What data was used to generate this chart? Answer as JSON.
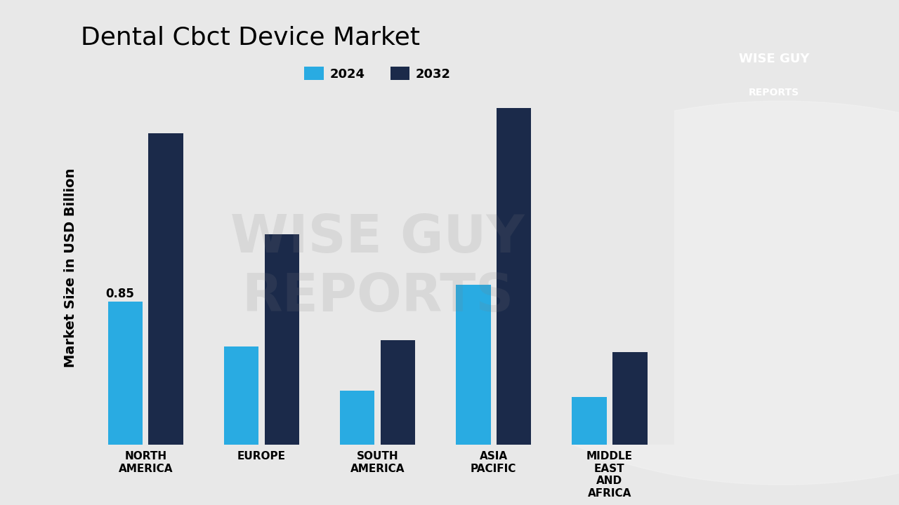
{
  "title": "Dental Cbct Device Market",
  "ylabel": "Market Size in USD Billion",
  "categories": [
    "NORTH\nAMERICA",
    "EUROPE",
    "SOUTH\nAMERICA",
    "ASIA\nPACIFIC",
    "MIDDLE\nEAST\nAND\nAFRICA"
  ],
  "series_2024": [
    0.85,
    0.58,
    0.32,
    0.95,
    0.28
  ],
  "series_2032": [
    1.85,
    1.25,
    0.62,
    2.0,
    0.55
  ],
  "color_2024": "#29ABE2",
  "color_2032": "#1B2A4A",
  "legend_labels": [
    "2024",
    "2032"
  ],
  "annotation_text": "0.85",
  "background_color": "#E8E8E8",
  "right_panel_color": "#1B2A4A",
  "title_color": "#000000",
  "title_fontsize": 26,
  "ylabel_fontsize": 14,
  "tick_fontsize": 11
}
